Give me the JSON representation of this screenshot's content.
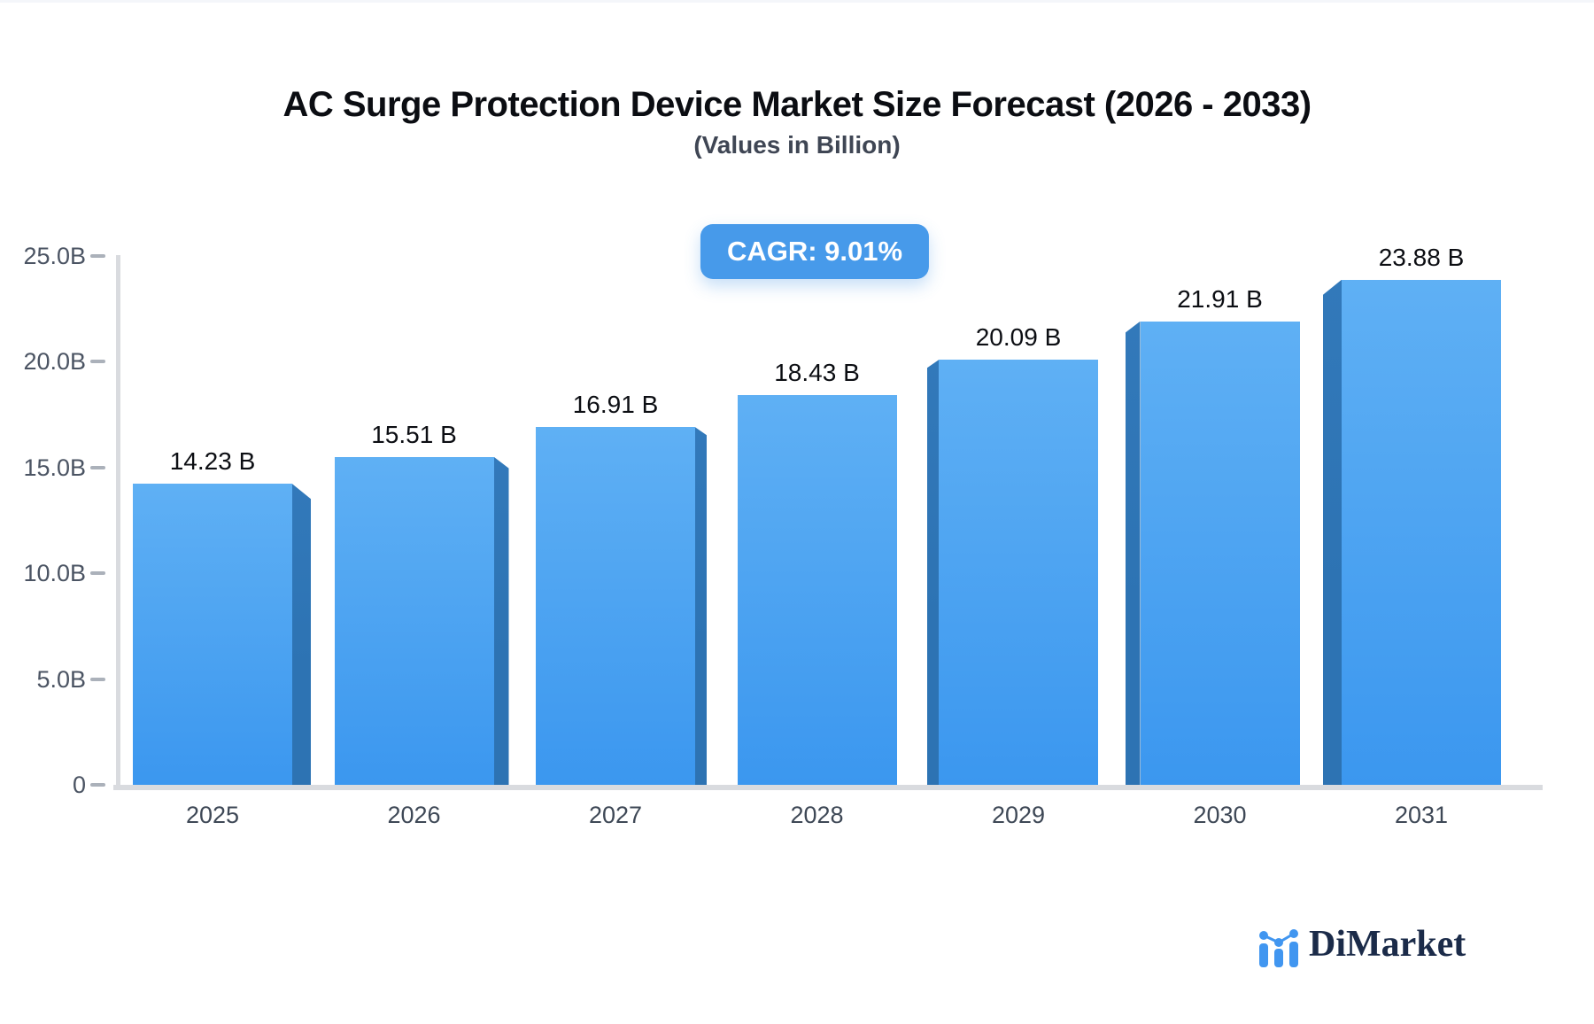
{
  "header": {
    "title": "AC Surge Protection Device Market Size Forecast (2026 - 2033)",
    "subtitle": "(Values in Billion)"
  },
  "badge": {
    "label": "CAGR: 9.01%"
  },
  "chart_data": {
    "type": "bar",
    "title": "AC Surge Protection Device Market Size Forecast (2026 - 2033)",
    "subtitle": "(Values in Billion)",
    "cagr_label": "CAGR: 9.01%",
    "unit": "Billion",
    "categories": [
      "2025",
      "2026",
      "2027",
      "2028",
      "2029",
      "2030",
      "2031"
    ],
    "values": [
      14.23,
      15.51,
      16.91,
      18.43,
      20.09,
      21.91,
      23.88
    ],
    "value_labels": [
      "14.23 B",
      "15.51 B",
      "16.91 B",
      "18.43 B",
      "20.09 B",
      "21.91 B",
      "23.88 B"
    ],
    "xlabel": "",
    "ylabel": "",
    "ylim": [
      0,
      25
    ],
    "yticks": [
      0,
      5,
      10,
      15,
      20,
      25
    ],
    "ytick_labels": [
      "0",
      "5.0B",
      "10.0B",
      "15.0B",
      "20.0B",
      "25.0B"
    ],
    "grid": false,
    "legend": false,
    "bar_style": "pseudo-3d, side bevel faces toward center column",
    "colors": {
      "bar_gradient_top": "#5fb0f4",
      "bar_gradient_bottom": "#3b97ef",
      "bar_side": "#2d73b3",
      "badge_bg": "#479aea",
      "axis_line": "#d9dbdf",
      "tick_text": "#4b5463",
      "value_text": "#0c0e13"
    }
  },
  "logo": {
    "text": "DiMarket",
    "icon": "bar-chart-with-trend-dots-icon",
    "text_color": "#1b2b49",
    "icon_color": "#4196f0"
  }
}
